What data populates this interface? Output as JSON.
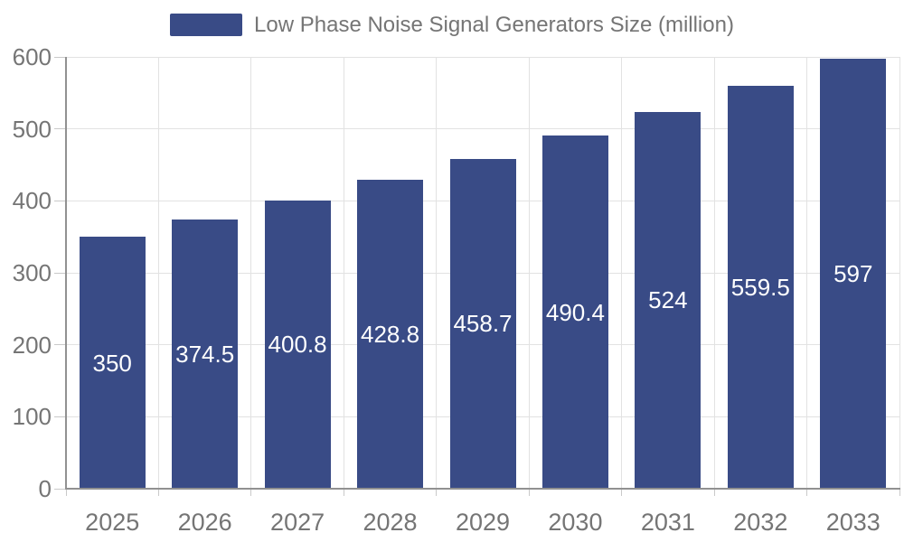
{
  "legend": {
    "label": "Low Phase Noise Signal Generators Size (million)"
  },
  "chart_data": {
    "type": "bar",
    "title": "Low Phase Noise Signal Generators Size (million)",
    "series_name": "Low Phase Noise Signal Generators Size (million)",
    "categories": [
      "2025",
      "2026",
      "2027",
      "2028",
      "2029",
      "2030",
      "2031",
      "2032",
      "2033"
    ],
    "values": [
      350,
      374.5,
      400.8,
      428.8,
      458.7,
      490.4,
      524,
      559.5,
      597
    ],
    "value_labels": [
      "350",
      "374.5",
      "400.8",
      "428.8",
      "458.7",
      "490.4",
      "524",
      "559.5",
      "597"
    ],
    "xlabel": "",
    "ylabel": "",
    "ylim": [
      0,
      600
    ],
    "yticks": [
      0,
      100,
      200,
      300,
      400,
      500,
      600
    ],
    "grid": true,
    "legend_position": "top-center",
    "value_label_position": "center-of-bar"
  },
  "colors": {
    "bar": "#394b86",
    "axis_label": "#757575",
    "legend_text": "#757575",
    "grid_line": "#e2e2e2",
    "axis_line": "#919191",
    "tick": "#c9c9c9",
    "value_label": "#ffffff",
    "background": "#ffffff"
  }
}
